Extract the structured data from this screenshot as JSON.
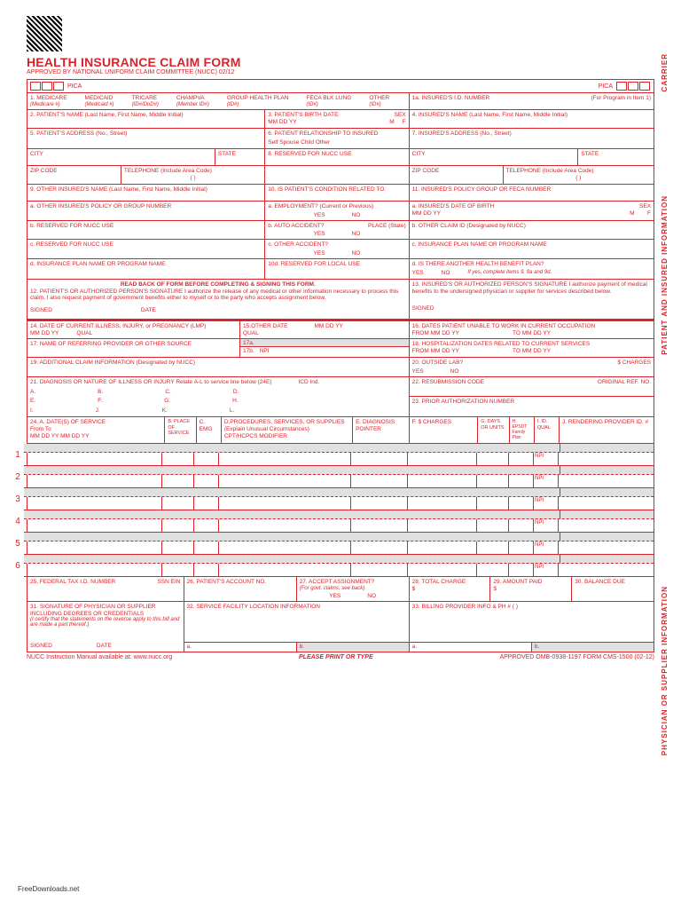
{
  "title": "HEALTH INSURANCE CLAIM FORM",
  "approved": "APPROVED BY NATIONAL UNIFORM CLAIM COMMITTEE (NUCC) 02/12",
  "pica": "PICA",
  "sideLabels": {
    "carrier": "CARRIER",
    "patient": "PATIENT AND INSURED INFORMATION",
    "physician": "PHYSICIAN OR SUPPLIER INFORMATION"
  },
  "insTypes": {
    "medicare": "1. MEDICARE",
    "medicareSub": "(Medicare #)",
    "medicaid": "MEDICAID",
    "medicaidSub": "(Medicaid #)",
    "tricare": "TRICARE",
    "tricareSub": "(ID#/DoD#)",
    "champva": "CHAMPVA",
    "champvaSub": "(Member ID#)",
    "group": "GROUP HEALTH PLAN",
    "groupSub": "(ID#)",
    "feca": "FECA BLK LUNG",
    "fecaSub": "(ID#)",
    "other": "OTHER",
    "otherSub": "(ID#)"
  },
  "f1a": "1a. INSURED'S I.D. NUMBER",
  "f1aSub": "(For Program in Item 1)",
  "f2": "2. PATIENT'S NAME (Last Name, First Name, Middle Initial)",
  "f3": "3. PATIENT'S BIRTH DATE",
  "f3date": "MM    DD    YY",
  "f3sex": "SEX",
  "mf": {
    "m": "M",
    "f": "F"
  },
  "f4": "4. INSURED'S NAME (Last Name, First Name, Middle Initial)",
  "f5": "5. PATIENT'S ADDRESS (No., Street)",
  "f6": "6. PATIENT RELATIONSHIP TO INSURED",
  "f6opts": "Self      Spouse     Child      Other",
  "f7": "7. INSURED'S ADDRESS (No., Street)",
  "city": "CITY",
  "state": "STATE",
  "f8": "8. RESERVED FOR NUCC USE",
  "zip": "ZIP CODE",
  "tel": "TELEPHONE (Include Area Code)",
  "paren": "(        )",
  "f9": "9. OTHER INSURED'S NAME (Last Name, First Name, Middle Initial)",
  "f10": "10. IS PATIENT'S CONDITION RELATED TO:",
  "f11": "11. INSURED'S POLICY GROUP OR FECA NUMBER",
  "f9a": "a. OTHER INSURED'S POLICY OR GROUP NUMBER",
  "f10a": "a. EMPLOYMENT? (Current or Previous)",
  "f11a": "a. INSURED'S DATE OF BIRTH",
  "f9b": "b. RESERVED FOR NUCC USE",
  "f10b": "b. AUTO ACCIDENT?",
  "place": "PLACE (State)",
  "f11b": "b. OTHER CLAIM ID (Designated by NUCC)",
  "f9c": "c. RESERVED FOR NUCC USE",
  "f10c": "c. OTHER ACCIDENT?",
  "f11c": "c. INSURANCE PLAN NAME OR PROGRAM NAME",
  "f9d": "d. INSURANCE PLAN NAME OR PROGRAM NAME",
  "f10d": "10d. RESERVED FOR LOCAL USE",
  "f11d": "d. IS THERE ANOTHER HEALTH BENEFIT PLAN?",
  "f11dSub": "If yes, complete items 9, 9a and 9d.",
  "yes": "YES",
  "no": "NO",
  "readback": "READ BACK OF FORM BEFORE COMPLETING & SIGNING THIS FORM.",
  "f12": "12. PATIENT'S OR AUTHORIZED PERSON'S SIGNATURE  I authorize the release of any medical or other information necessary to process this claim. I also request payment of government benefits either to myself or to the party who accepts assignment below.",
  "f13": "13. INSURED'S OR AUTHORIZED PERSON'S SIGNATURE I authorize payment of medical benefits to the undersigned physician or supplier for services described below.",
  "signed": "SIGNED",
  "date": "DATE",
  "f14": "14. DATE OF CURRENT ILLNESS, INJURY, or PREGNANCY (LMP)",
  "qual": "QUAL",
  "f15": "15.OTHER DATE",
  "f16": "16. DATES PATIENT UNABLE TO WORK IN CURRENT OCCUPATION",
  "from": "FROM",
  "to": "TO",
  "f17": "17. NAME OF REFERRING PROVIDER OR OTHER SOURCE",
  "f17a": "17a.",
  "f17b": "17b.",
  "npi": "NPI",
  "f18": "18. HOSPITALIZATION DATES RELATED TO CURRENT SERVICES",
  "f19": "19. ADDITIONAL CLAIM INFORMATION (Designated by NUCC)",
  "f20": "20. OUTSIDE LAB?",
  "charges": "$ CHARGES",
  "f21": "21. DIAGNOSIS OR NATURE OF ILLNESS OR INJURY    Relate A-L to service line below (24E)",
  "icd": "ICD Ind.",
  "f22": "22. RESUBMISSION CODE",
  "origref": "ORIGINAL REF. NO.",
  "f23": "23. PRIOR AUTHORIZATION NUMBER",
  "diag": {
    "a": "A.",
    "b": "B.",
    "c": "C.",
    "d": "D.",
    "e": "E.",
    "f": "F.",
    "g": "G.",
    "h": "H.",
    "i": "I.",
    "j": "J.",
    "k": "K.",
    "l": "L."
  },
  "f24hdr": {
    "a": "24. A.     DATE(S) OF SERVICE",
    "fromto": "From                    To",
    "dates": "MM   DD   YY   MM   DD   YY",
    "b": "B. PLACE OF SERVICE",
    "c": "C. EMG",
    "d": "D.PROCEDURES, SERVICES, OR SUPPLIES",
    "dSub": "(Explain Unusual Circumstances)",
    "dCols": "CPT/HCPCS          MODIFIER",
    "e": "E. DIAGNOSIS POINTER",
    "f": "F. $ CHARGES",
    "g": "G. DAYS OR UNITS",
    "h": "H. EPSDT Family Plan",
    "i": "I. ID. QUAL",
    "j": "J. RENDERING PROVIDER ID. #"
  },
  "svcNums": [
    "1",
    "2",
    "3",
    "4",
    "5",
    "6"
  ],
  "f25": "25. FEDERAL TAX I.D. NUMBER",
  "ssnein": "SSN  EIN",
  "f26": "26. PATIENT'S ACCOUNT NO.",
  "f27": "27. ACCEPT ASSIGNMENT?",
  "f27sub": "(For govt. claims, see back)",
  "f28": "28. TOTAL CHARGE",
  "f29": "29. AMOUNT PAID",
  "f30": "30. BALANCE DUE",
  "dollar": "$",
  "f31": "31. SIGNATURE OF PHYSICIAN OR SUPPLIER INCLUDING DEGREES OR CREDENTIALS",
  "f31sub": "(I certify that the statements on the reverse apply to this bill and are made a part thereof.)",
  "f32": "32. SERVICE FACILITY LOCATION INFORMATION",
  "f33": "33. BILLING PROVIDER INFO & PH #",
  "a": "a.",
  "b": "b.",
  "nuccmanual": "NUCC Instruction Manual available at: www.nucc.org",
  "pleaseprint": "PLEASE PRINT OR TYPE",
  "omb": "APPROVED OMB-0938-1197 FORM CMS-1500 (02-12)",
  "freedl": "FreeDownloads.net",
  "colors": {
    "red": "#d8232a",
    "gray": "#e0e0e0"
  }
}
